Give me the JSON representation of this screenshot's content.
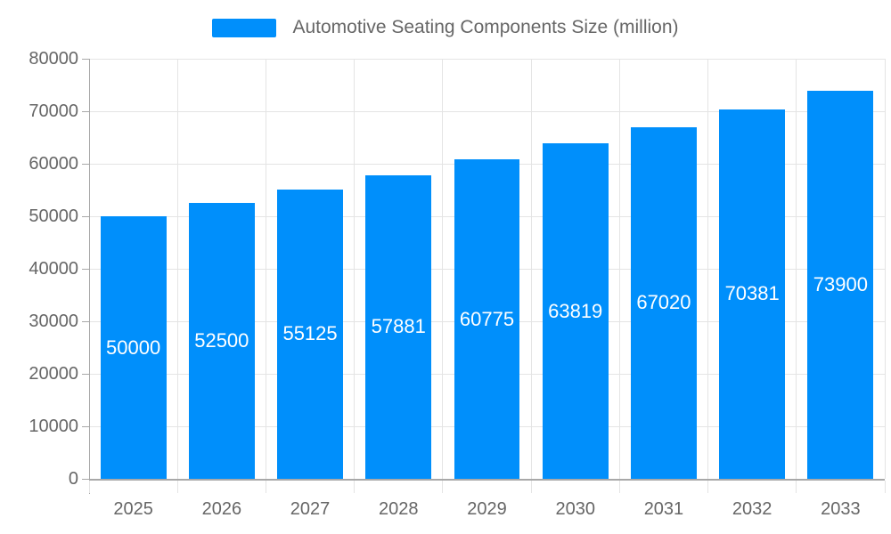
{
  "chart_data": {
    "type": "bar",
    "title": "Automotive Seating Components Size (million)",
    "legend_position": "top",
    "categories": [
      "2025",
      "2026",
      "2027",
      "2028",
      "2029",
      "2030",
      "2031",
      "2032",
      "2033"
    ],
    "values": [
      50000,
      52500,
      55125,
      57881,
      60775,
      63819,
      67020,
      70381,
      73900
    ],
    "xlabel": "",
    "ylabel": "",
    "ylim": [
      0,
      80000
    ],
    "ytick_step": 10000,
    "ytick_labels": [
      "0",
      "10000",
      "20000",
      "30000",
      "40000",
      "50000",
      "60000",
      "70000",
      "80000"
    ],
    "grid": true,
    "value_labels_shown": true,
    "colors": {
      "bar": "#008FFB",
      "grid": "#e4e4e4",
      "axis": "#a8a8a8",
      "tick_label": "#666666",
      "value_label": "#ffffff",
      "background": "#ffffff"
    }
  }
}
